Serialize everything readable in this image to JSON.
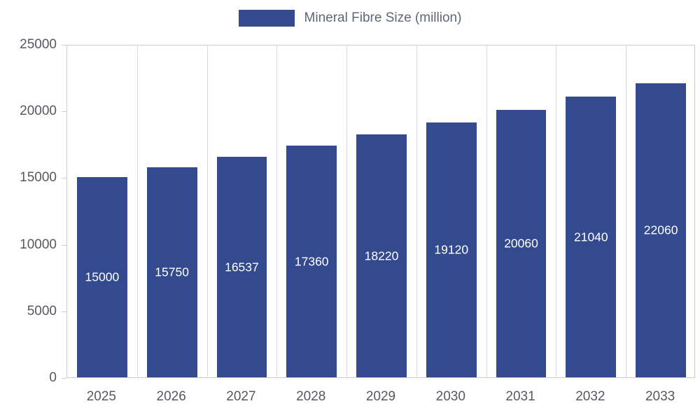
{
  "colors": {
    "bar": "#344a8f",
    "grid": "#d9d9d9",
    "axis_text": "#55595f",
    "legend_text": "#5c6878",
    "bar_label_text": "#ffffff",
    "plot_border": "#cccccc"
  },
  "legend": {
    "label": "Mineral Fibre Size (million)"
  },
  "chart_data": {
    "type": "bar",
    "title": "Mineral Fibre Size (million)",
    "categories": [
      "2025",
      "2026",
      "2027",
      "2028",
      "2029",
      "2030",
      "2031",
      "2032",
      "2033"
    ],
    "values": [
      15000,
      15750,
      16537,
      17360,
      18220,
      19120,
      20060,
      21040,
      22060
    ],
    "value_labels": [
      "15000",
      "15750",
      "16537",
      "17360",
      "18220",
      "19120",
      "20060",
      "21040",
      "22060"
    ],
    "xlabel": "",
    "ylabel": "",
    "ylim": [
      0,
      25000
    ],
    "yticks": [
      0,
      5000,
      10000,
      15000,
      20000,
      25000
    ],
    "ytick_labels": [
      "0",
      "5000",
      "10000",
      "15000",
      "20000",
      "25000"
    ],
    "grid": "vertical",
    "legend_position": "top-center",
    "bar_label_position": "inside-center"
  }
}
